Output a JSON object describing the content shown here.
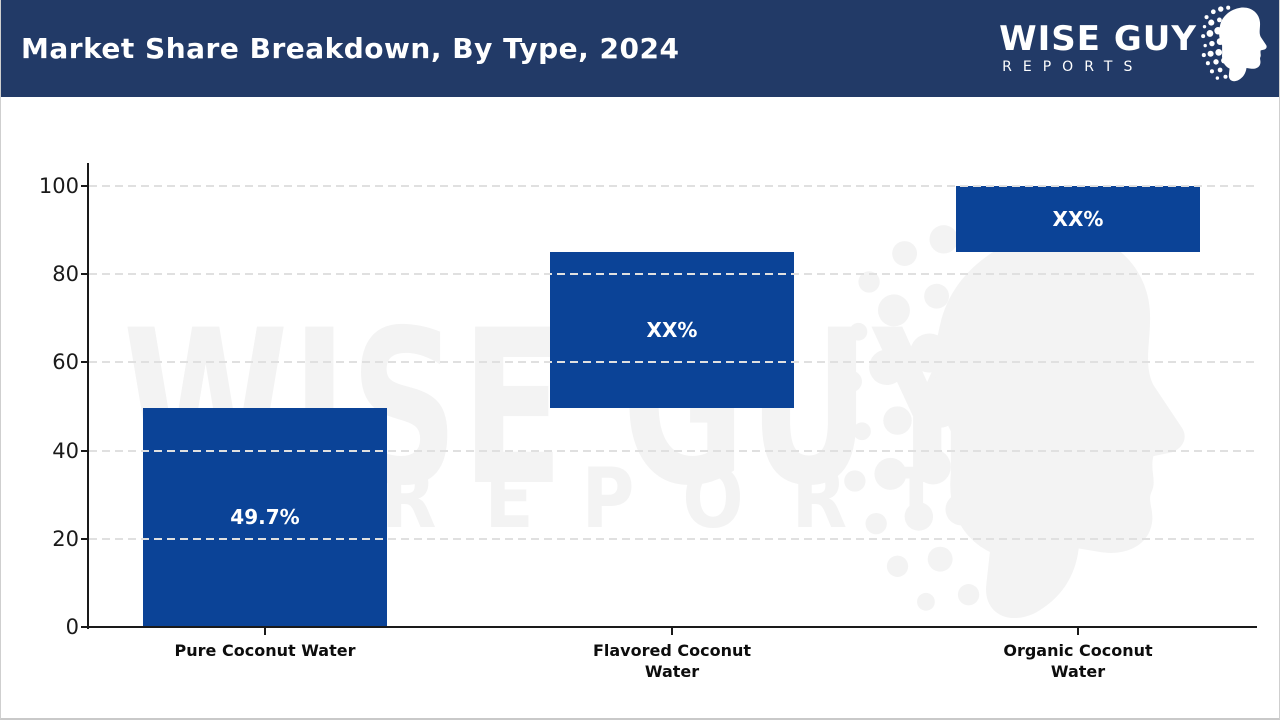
{
  "header": {
    "title": "Market Share Breakdown, By Type, 2024",
    "logo": {
      "wordmark": "WISE GUY",
      "subtitle": "REPORTS"
    }
  },
  "watermark": {
    "wordmark": "WISE GUY",
    "subtitle": "REPORTS"
  },
  "chart_data": {
    "type": "bar",
    "subtype": "waterfall-segments",
    "title": "Market Share Breakdown, By Type, 2024",
    "categories": [
      [
        "Pure Coconut Water"
      ],
      [
        "Flavored Coconut",
        "Water"
      ],
      [
        "Organic Coconut",
        "Water"
      ]
    ],
    "segments": [
      {
        "category": "Pure Coconut Water",
        "start": 0,
        "end": 49.7,
        "label": "49.7%"
      },
      {
        "category": "Flavored Coconut Water",
        "start": 49.7,
        "end": 85,
        "label": "XX%"
      },
      {
        "category": "Organic Coconut Water",
        "start": 85,
        "end": 100,
        "label": "XX%"
      }
    ],
    "xlabel": "",
    "ylabel": "",
    "ylim": [
      0,
      100
    ],
    "yticks": [
      0,
      20,
      40,
      60,
      80,
      100
    ],
    "grid": "horizontal-dashed",
    "legend": "none",
    "colors": {
      "bar": "#0b4397",
      "bar_label": "#ffffff",
      "gridline": "#e0e0e0",
      "axis": "#1a1a1a",
      "header_bg": "#223a67",
      "watermark": "#f3f3f3"
    }
  }
}
